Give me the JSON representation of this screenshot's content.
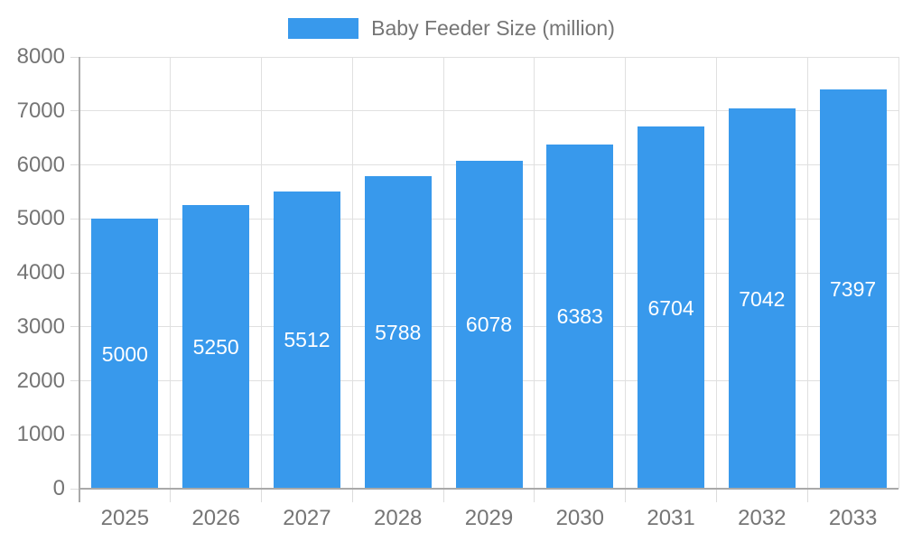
{
  "legend": {
    "label": "Baby Feeder Size (million)"
  },
  "colors": {
    "bar": "#3899EC",
    "axis_line": "#A9A9A9",
    "gridline": "#E0E0E0",
    "tick": "#DCDCDC",
    "axis_text": "#757575",
    "bar_label_text": "#FFFFFF",
    "background": "#FFFFFF"
  },
  "chart_data": {
    "type": "bar",
    "title": "Baby Feeder Size (million)",
    "series_name": "Baby Feeder Size (million)",
    "categories": [
      "2025",
      "2026",
      "2027",
      "2028",
      "2029",
      "2030",
      "2031",
      "2032",
      "2033"
    ],
    "values": [
      5000,
      5250,
      5512,
      5788,
      6078,
      6383,
      6704,
      7042,
      7397
    ],
    "bar_labels": [
      "5000",
      "5250",
      "5512",
      "5788",
      "6078",
      "6383",
      "6704",
      "7042",
      "7397"
    ],
    "xlabel": "",
    "ylabel": "",
    "ylim": [
      0,
      8000
    ],
    "ytick_step": 1000,
    "ytick_labels": [
      "0",
      "1000",
      "2000",
      "3000",
      "4000",
      "5000",
      "6000",
      "7000",
      "8000"
    ],
    "grid": true,
    "legend_position": "top-center"
  }
}
